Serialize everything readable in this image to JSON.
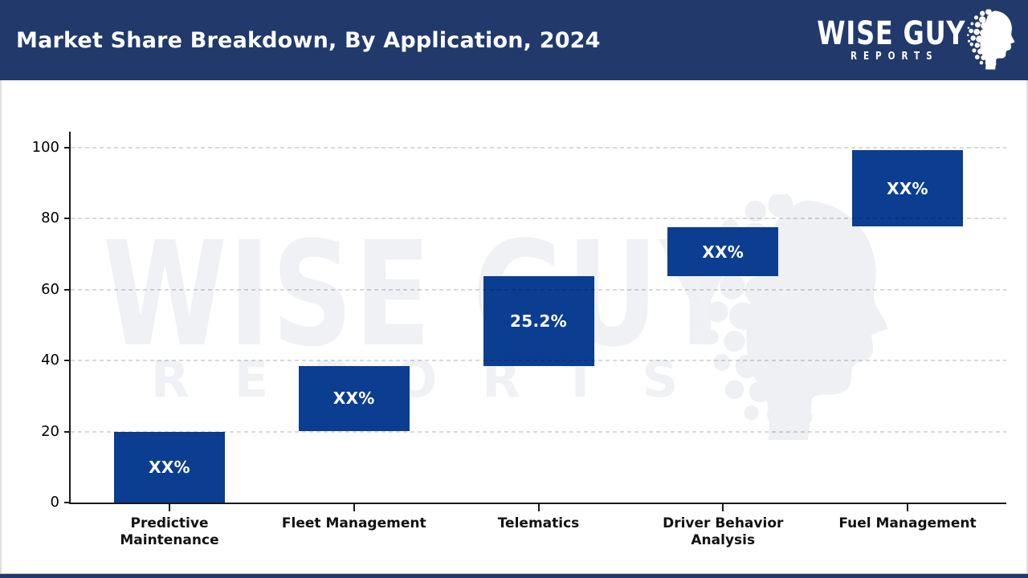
{
  "header": {
    "title": "Market Share Breakdown, By Application, 2024",
    "logo": {
      "line1": "WISE GUY",
      "line2": "REPORTS"
    }
  },
  "watermark": {
    "line1": "WISE GUY",
    "line2": "REPORTS"
  },
  "chart_data": {
    "type": "bar",
    "variant": "floating-waterfall",
    "title": "Market Share Breakdown, By Application, 2024",
    "xlabel": "",
    "ylabel": "",
    "categories": [
      "Predictive Maintenance",
      "Fleet Management",
      "Telematics",
      "Driver Behavior Analysis",
      "Fuel Management"
    ],
    "bars": [
      {
        "category": "Predictive Maintenance",
        "start": 0,
        "end": 20,
        "label": "XX%"
      },
      {
        "category": "Fleet Management",
        "start": 20.2,
        "end": 38.5,
        "label": "XX%"
      },
      {
        "category": "Telematics",
        "start": 38.5,
        "end": 63.7,
        "label": "25.2%"
      },
      {
        "category": "Driver Behavior Analysis",
        "start": 63.7,
        "end": 77.5,
        "label": "XX%"
      },
      {
        "category": "Fuel Management",
        "start": 77.7,
        "end": 99.3,
        "label": "XX%"
      }
    ],
    "yticks": [
      0,
      20,
      40,
      60,
      80,
      100
    ],
    "ylim": [
      0,
      104.5
    ],
    "grid": "horizontal-dashed",
    "legend": "none",
    "bar_color": "#0b3d91",
    "bar_label_color": "#ffffff"
  },
  "colors": {
    "header_bg": "#21396b",
    "footer_bg": "#21396b",
    "bar_blue": "#0b3d91",
    "watermark_gray": "#f0f1f4",
    "axis_black": "#1a1a1a"
  }
}
